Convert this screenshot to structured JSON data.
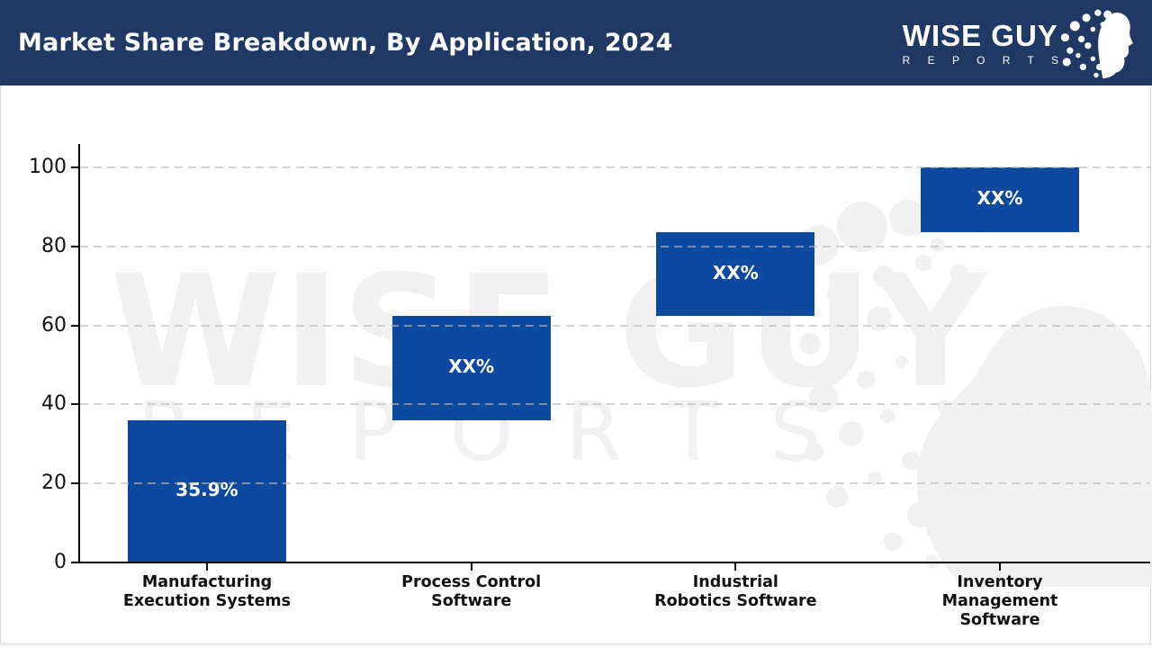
{
  "header": {
    "title": "Market Share Breakdown, By Application, 2024",
    "brand": {
      "name": "WISE GUY",
      "subname": "R E P O R T S"
    }
  },
  "watermark": {
    "line1": "WISE GUY",
    "line2": "REPORTS"
  },
  "chart_data": {
    "type": "bar",
    "subtype": "waterfall",
    "title": "Market Share Breakdown, By Application, 2024",
    "categories": [
      "Manufacturing Execution Systems",
      "Process Control Software",
      "Industrial Robotics Software",
      "Inventory Management Software"
    ],
    "category_lines": [
      [
        "Manufacturing",
        "Execution Systems"
      ],
      [
        "Process Control",
        "Software"
      ],
      [
        "Industrial",
        "Robotics Software"
      ],
      [
        "Inventory",
        "Management",
        "Software"
      ]
    ],
    "segments": [
      {
        "category": "Manufacturing Execution Systems",
        "start": 0,
        "end": 35.9,
        "label": "35.9%"
      },
      {
        "category": "Process Control Software",
        "start": 35.9,
        "end": 62.5,
        "label": "XX%"
      },
      {
        "category": "Industrial Robotics Software",
        "start": 62.5,
        "end": 83.5,
        "label": "XX%"
      },
      {
        "category": "Inventory Management Software",
        "start": 83.5,
        "end": 100,
        "label": "XX%"
      }
    ],
    "xlabel": "",
    "ylabel": "",
    "yticks": [
      0,
      20,
      40,
      60,
      80,
      100
    ],
    "ylim": [
      0,
      105
    ],
    "grid": "horizontal-dashed",
    "legend": "none",
    "colors": {
      "bar": "#0d4a9f",
      "header_bar": "#1f3864",
      "bar_value_text": "#ffffff",
      "axis": "#000000",
      "gridline": "#d9d9d9",
      "watermark": "#f1f1f1"
    }
  }
}
